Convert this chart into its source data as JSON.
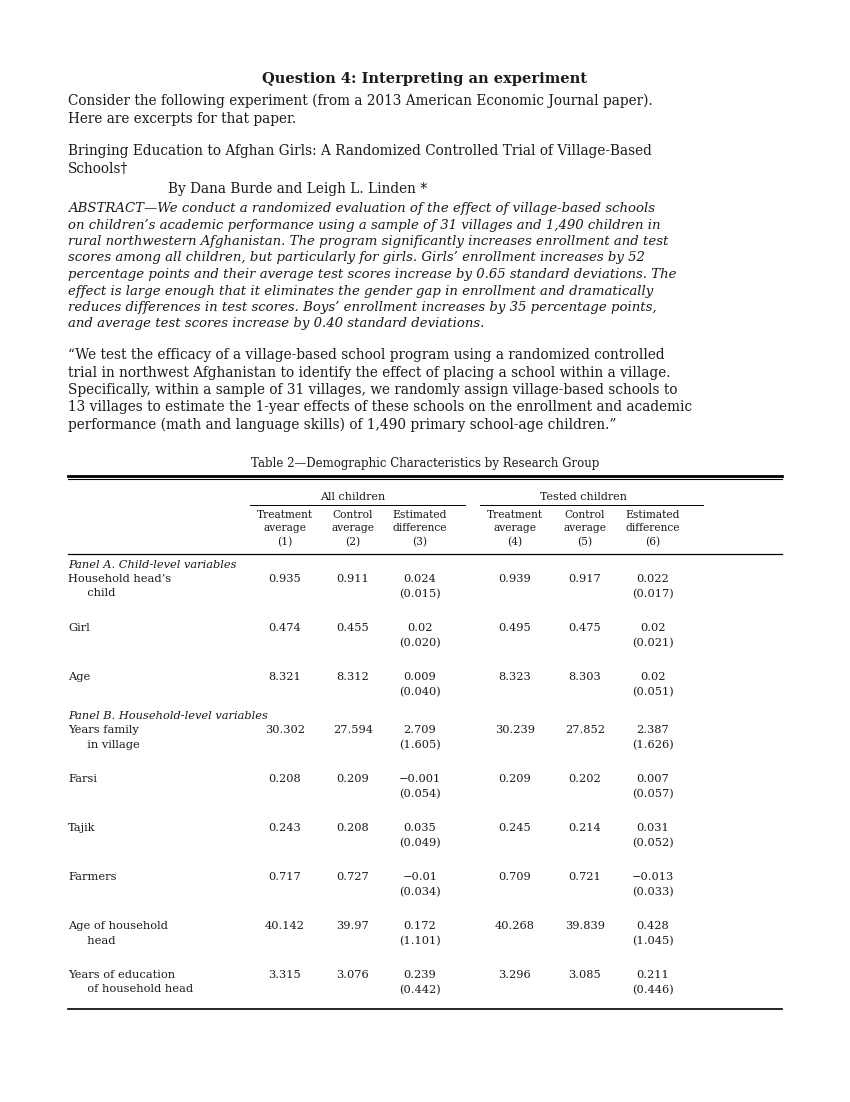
{
  "title": "Question 4: Interpreting an experiment",
  "intro_line1": "Consider the following experiment (from a 2013 American Economic Journal paper).",
  "intro_line2": "Here are excerpts for that paper.",
  "paper_title_line1": "Bringing Education to Afghan Girls: A Randomized Controlled Trial of Village-Based",
  "paper_title_line2": "Schools†",
  "authors": "By Dana Burde and Leigh L. Linden *",
  "abstract_label": "ABSTRACT",
  "abstract_body": "—We conduct a randomized evaluation of the effect of village-based schools on children’s academic performance using a sample of 31 villages and 1,490 children in rural northwestern Afghanistan. The program significantly increases enrollment and test scores among all children, but particularly for girls. Girls’ enrollment increases by 52 percentage points and their average test scores increase by 0.65 standard deviations. The effect is large enough that it eliminates the gender gap in enrollment and dramatically reduces differences in test scores. Boys’ enrollment increases by 35 percentage points, and average test scores increase by 0.40 standard deviations.",
  "quote_line1": "“We test the efficacy of a village-based school program using a randomized controlled",
  "quote_line2": "trial in northwest Afghanistan to identify the effect of placing a school within a village.",
  "quote_line3": "Specifically, within a sample of 31 villages, we randomly assign village-based schools to",
  "quote_line4": "13 villages to estimate the 1-year effects of these schools on the enrollment and academic",
  "quote_line5": "performance (math and language skills) of 1,490 primary school-age children.”",
  "table_title": "Table 2—Demographic Characteristics by Research Group",
  "panel_a_title": "Panel A. Child-level variables",
  "panel_b_title": "Panel B. Household-level variables",
  "bg_color": "#ffffff",
  "text_color": "#1a1a1a"
}
